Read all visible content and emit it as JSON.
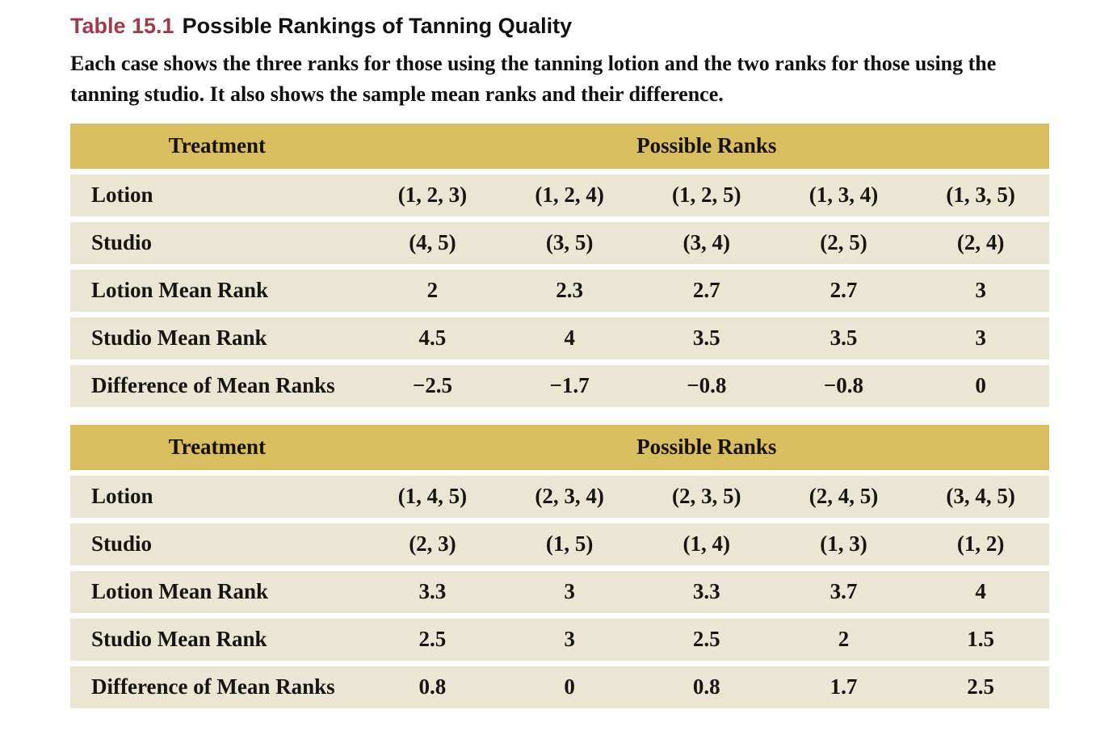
{
  "title": {
    "label": "Table 15.1",
    "text": "Possible Rankings of Tanning Quality"
  },
  "caption": "Each case shows the three ranks for those using the tanning lotion and the two ranks for those using the tanning studio. It also shows the sample mean ranks and their difference.",
  "colors": {
    "accent": "#9e3a4a",
    "header_band": "#d9be5f",
    "row_bg": "#ebe6d3"
  },
  "tables": [
    {
      "header": {
        "treatment": "Treatment",
        "possible_ranks": "Possible Ranks"
      },
      "rows": [
        {
          "label": "Lotion",
          "values": [
            "(1, 2, 3)",
            "(1, 2, 4)",
            "(1, 2, 5)",
            "(1, 3, 4)",
            "(1, 3, 5)"
          ]
        },
        {
          "label": "Studio",
          "values": [
            "(4, 5)",
            "(3, 5)",
            "(3, 4)",
            "(2, 5)",
            "(2, 4)"
          ]
        },
        {
          "label": "Lotion Mean Rank",
          "values": [
            "2",
            "2.3",
            "2.7",
            "2.7",
            "3"
          ]
        },
        {
          "label": "Studio Mean Rank",
          "values": [
            "4.5",
            "4",
            "3.5",
            "3.5",
            "3"
          ]
        },
        {
          "label": "Difference of Mean Ranks",
          "values": [
            "−2.5",
            "−1.7",
            "−0.8",
            "−0.8",
            "0"
          ]
        }
      ]
    },
    {
      "header": {
        "treatment": "Treatment",
        "possible_ranks": "Possible Ranks"
      },
      "rows": [
        {
          "label": "Lotion",
          "values": [
            "(1, 4, 5)",
            "(2, 3, 4)",
            "(2, 3, 5)",
            "(2, 4, 5)",
            "(3, 4, 5)"
          ]
        },
        {
          "label": "Studio",
          "values": [
            "(2, 3)",
            "(1, 5)",
            "(1, 4)",
            "(1, 3)",
            "(1, 2)"
          ]
        },
        {
          "label": "Lotion Mean Rank",
          "values": [
            "3.3",
            "3",
            "3.3",
            "3.7",
            "4"
          ]
        },
        {
          "label": "Studio Mean Rank",
          "values": [
            "2.5",
            "3",
            "2.5",
            "2",
            "1.5"
          ]
        },
        {
          "label": "Difference of Mean Ranks",
          "values": [
            "0.8",
            "0",
            "0.8",
            "1.7",
            "2.5"
          ]
        }
      ]
    }
  ]
}
